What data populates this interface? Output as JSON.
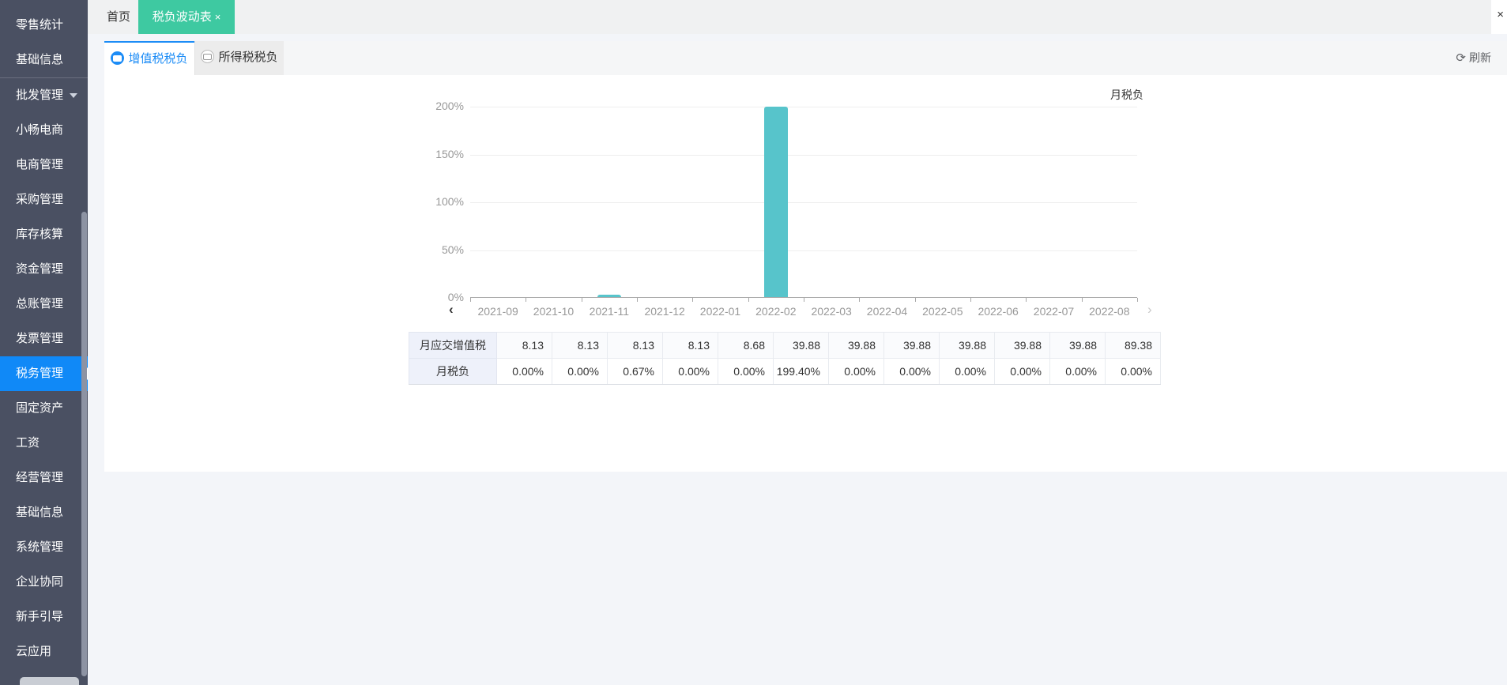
{
  "sidebar": {
    "items": [
      {
        "label": "零售统计"
      },
      {
        "label": "基础信息",
        "divider_after": true
      },
      {
        "label": "批发管理",
        "caret": true
      },
      {
        "label": "小畅电商"
      },
      {
        "label": "电商管理"
      },
      {
        "label": "采购管理"
      },
      {
        "label": "库存核算"
      },
      {
        "label": "资金管理"
      },
      {
        "label": "总账管理"
      },
      {
        "label": "发票管理"
      },
      {
        "label": "税务管理",
        "active": true
      },
      {
        "label": "固定资产"
      },
      {
        "label": "工资"
      },
      {
        "label": "经营管理"
      },
      {
        "label": "基础信息"
      },
      {
        "label": "系统管理"
      },
      {
        "label": "企业协同"
      },
      {
        "label": "新手引导"
      },
      {
        "label": "云应用"
      }
    ],
    "active_color": "#1089f7",
    "bg_color": "#4a5062"
  },
  "tabstrip": {
    "home_label": "首页",
    "active_tab_label": "税负波动表",
    "active_tab_close": "×",
    "active_tab_color": "#3ec9a1",
    "window_close": "×"
  },
  "card": {
    "tabs": [
      {
        "label": "增值税税负",
        "icon": "vat-badge-icon",
        "active": true
      },
      {
        "label": "所得税税负",
        "icon": "income-tax-badge-icon",
        "active": false
      }
    ],
    "refresh_label": "刷新",
    "refresh_icon": "⟳"
  },
  "chart_data": {
    "type": "bar",
    "title": "",
    "legend": [
      {
        "name": "月税负",
        "color": "#57c4cb"
      }
    ],
    "categories": [
      "2021-09",
      "2021-10",
      "2021-11",
      "2021-12",
      "2022-01",
      "2022-02",
      "2022-03",
      "2022-04",
      "2022-05",
      "2022-06",
      "2022-07",
      "2022-08"
    ],
    "series": [
      {
        "name": "月税负",
        "values": [
          0,
          0,
          0.67,
          0,
          0,
          199.4,
          0,
          0,
          0,
          0,
          0,
          0
        ]
      }
    ],
    "yticks": [
      "0%",
      "50%",
      "100%",
      "150%",
      "200%"
    ],
    "ylim": [
      0,
      200
    ],
    "grid": true,
    "legend_position": "top-right",
    "bar_color": "#57c4cb",
    "prev_arrow": "‹",
    "next_arrow": "›"
  },
  "table": {
    "rows": [
      {
        "label": "月应交增值税",
        "values": [
          "8.13",
          "8.13",
          "8.13",
          "8.13",
          "8.68",
          "39.88",
          "39.88",
          "39.88",
          "39.88",
          "39.88",
          "39.88",
          "89.38"
        ]
      },
      {
        "label": "月税负",
        "values": [
          "0.00%",
          "0.00%",
          "0.67%",
          "0.00%",
          "0.00%",
          "199.40%",
          "0.00%",
          "0.00%",
          "0.00%",
          "0.00%",
          "0.00%",
          "0.00%"
        ]
      }
    ]
  }
}
